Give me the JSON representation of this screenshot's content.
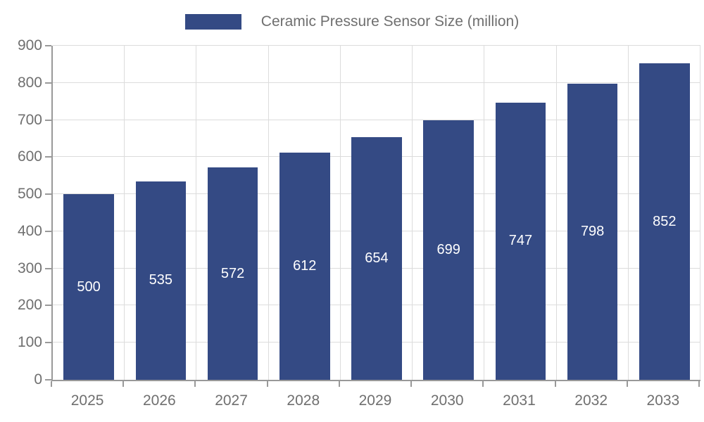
{
  "chart_data": {
    "type": "bar",
    "title": "Ceramic Pressure Sensor Size (million)",
    "legend_entries": [
      "Ceramic Pressure Sensor Size (million)"
    ],
    "legend_position": "top-center",
    "categories": [
      "2025",
      "2026",
      "2027",
      "2028",
      "2029",
      "2030",
      "2031",
      "2032",
      "2033"
    ],
    "values": [
      500,
      535,
      572,
      612,
      654,
      699,
      747,
      798,
      852
    ],
    "xlabel": "",
    "ylabel": "",
    "ylim": [
      0,
      900
    ],
    "ytick_step": 100,
    "ytick_labels": [
      "0",
      "100",
      "200",
      "300",
      "400",
      "500",
      "600",
      "700",
      "800",
      "900"
    ],
    "grid": true,
    "colors": {
      "bar": "#344a84",
      "value_label": "#ffffff",
      "axis_label": "#6f6f6f",
      "axis_line": "#999999",
      "gridline": "#dcdcdc",
      "background": "#ffffff"
    }
  }
}
